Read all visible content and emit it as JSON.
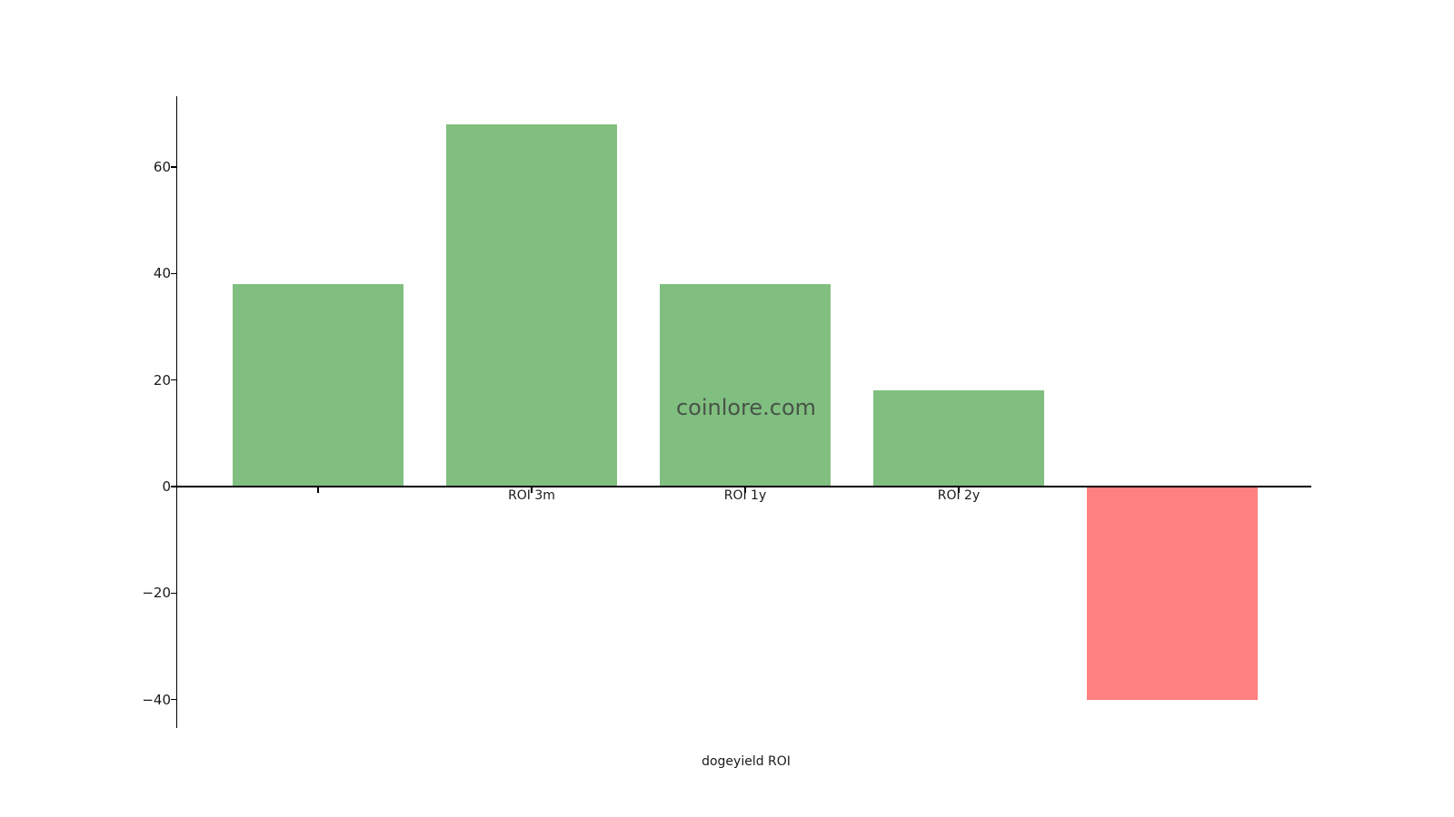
{
  "chart_data": {
    "type": "bar",
    "title": "",
    "xlabel": "dogeyield ROI",
    "ylabel": "",
    "categories": [
      "",
      "ROI 3m",
      "ROI 1y",
      "ROI 2y",
      ""
    ],
    "values": [
      38,
      68,
      38,
      18,
      -40
    ],
    "bar_colors": [
      "#80bf80",
      "#80bf80",
      "#80bf80",
      "#80bf80",
      "#ff8080"
    ],
    "positive_color": "#80bf80",
    "negative_color": "#ff8080",
    "yticks": [
      60,
      40,
      20,
      0,
      -20,
      -40
    ],
    "ylim": [
      -45,
      73
    ],
    "grid": false,
    "legend": null,
    "x_tick_visible": [
      true,
      true,
      true,
      true,
      false
    ],
    "axis_color": "#000000",
    "tick_text_color": "#1a1a1a"
  },
  "watermark": {
    "text": "coinlore.com",
    "color": "#3c3c3c"
  }
}
